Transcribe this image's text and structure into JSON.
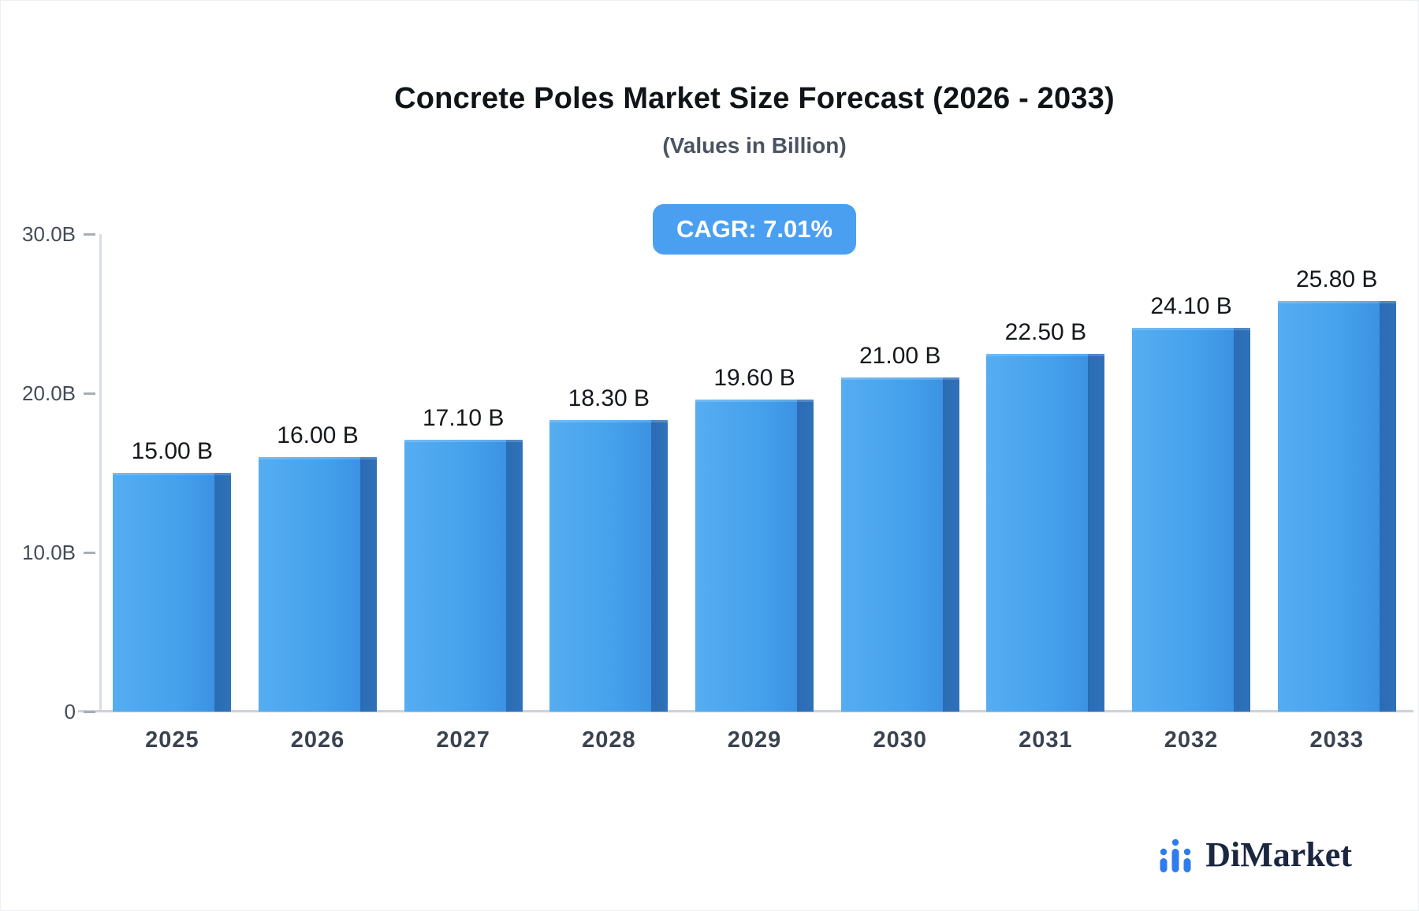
{
  "title": "Concrete Poles Market Size Forecast (2026 - 2033)",
  "subtitle": "(Values in Billion)",
  "badge": {
    "label": "CAGR: 7.01%"
  },
  "logo": {
    "text": "DiMarket"
  },
  "colors": {
    "bar_front": "#45a1ec",
    "bar_side": "#2b6cb4",
    "badge_bg": "#4a9ff0",
    "axis": "#ccd3da",
    "title_text": "#101418",
    "subtitle_text": "#4a5361",
    "logo_text": "#1b2640",
    "logo_icon": "#2f7ded"
  },
  "chart_data": {
    "type": "bar",
    "title": "Concrete Poles Market Size Forecast (2026 - 2033)",
    "subtitle": "(Values in Billion)",
    "categories": [
      "2025",
      "2026",
      "2027",
      "2028",
      "2029",
      "2030",
      "2031",
      "2032",
      "2033"
    ],
    "values": [
      15.0,
      16.0,
      17.1,
      18.3,
      19.6,
      21.0,
      22.5,
      24.1,
      25.8
    ],
    "value_labels": [
      "15.00 B",
      "16.00 B",
      "17.10 B",
      "18.30 B",
      "19.60 B",
      "21.00 B",
      "22.50 B",
      "24.10 B",
      "25.80 B"
    ],
    "xlabel": "",
    "ylabel": "",
    "ylim": [
      0,
      30
    ],
    "yticks": [
      {
        "value": 0,
        "label": "0"
      },
      {
        "value": 10,
        "label": "10.0B"
      },
      {
        "value": 20,
        "label": "20.0B"
      },
      {
        "value": 30,
        "label": "30.0B"
      }
    ],
    "grid": false,
    "legend": false,
    "annotation": "CAGR: 7.01%"
  }
}
